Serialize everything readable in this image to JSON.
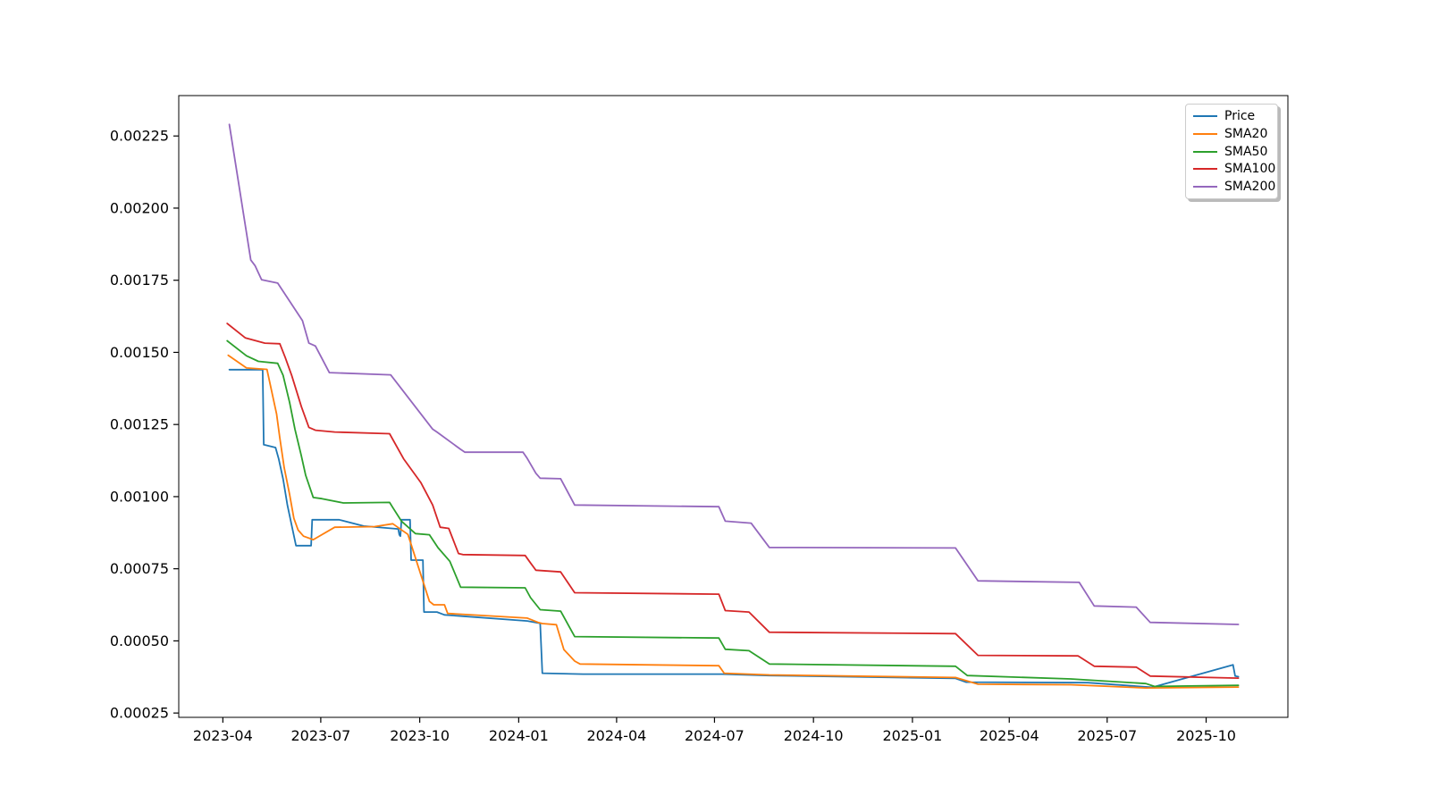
{
  "figure": {
    "background": "#ffffff"
  },
  "chart_data": {
    "type": "line",
    "title": "",
    "xlabel": "",
    "ylabel": "",
    "grid": false,
    "x_domain": [
      "2023-02-19",
      "2025-12-16"
    ],
    "y_domain": [
      0.000235,
      0.00239
    ],
    "x_ticks": [
      {
        "date": "2023-04-01",
        "label": "2023-04"
      },
      {
        "date": "2023-07-01",
        "label": "2023-07"
      },
      {
        "date": "2023-10-01",
        "label": "2023-10"
      },
      {
        "date": "2024-01-01",
        "label": "2024-01"
      },
      {
        "date": "2024-04-01",
        "label": "2024-04"
      },
      {
        "date": "2024-07-01",
        "label": "2024-07"
      },
      {
        "date": "2024-10-01",
        "label": "2024-10"
      },
      {
        "date": "2025-01-01",
        "label": "2025-01"
      },
      {
        "date": "2025-04-01",
        "label": "2025-04"
      },
      {
        "date": "2025-07-01",
        "label": "2025-07"
      },
      {
        "date": "2025-10-01",
        "label": "2025-10"
      }
    ],
    "y_ticks": [
      {
        "value": 0.00025,
        "label": "0.00025"
      },
      {
        "value": 0.0005,
        "label": "0.00050"
      },
      {
        "value": 0.00075,
        "label": "0.00075"
      },
      {
        "value": 0.001,
        "label": "0.00100"
      },
      {
        "value": 0.00125,
        "label": "0.00125"
      },
      {
        "value": 0.0015,
        "label": "0.00150"
      },
      {
        "value": 0.00175,
        "label": "0.00175"
      },
      {
        "value": 0.002,
        "label": "0.00200"
      },
      {
        "value": 0.00225,
        "label": "0.00225"
      }
    ],
    "legend": {
      "position": "upper right",
      "entries": [
        "Price",
        "SMA20",
        "SMA50",
        "SMA100",
        "SMA200"
      ]
    },
    "series": [
      {
        "name": "Price",
        "color": "#1f77b4",
        "points": [
          [
            "2023-04-07",
            0.00144
          ],
          [
            "2023-05-08",
            0.00144
          ],
          [
            "2023-05-09",
            0.00118
          ],
          [
            "2023-05-20",
            0.00117
          ],
          [
            "2023-05-23",
            0.00113
          ],
          [
            "2023-05-27",
            0.00106
          ],
          [
            "2023-05-31",
            0.00097
          ],
          [
            "2023-06-04",
            0.0009
          ],
          [
            "2023-06-08",
            0.00083
          ],
          [
            "2023-06-22",
            0.00083
          ],
          [
            "2023-06-23",
            0.00092
          ],
          [
            "2023-07-18",
            0.00092
          ],
          [
            "2023-08-10",
            0.000898
          ],
          [
            "2023-09-11",
            0.000888
          ],
          [
            "2023-09-12",
            0.000868
          ],
          [
            "2023-09-13",
            0.000863
          ],
          [
            "2023-09-14",
            0.00092
          ],
          [
            "2023-09-22",
            0.00092
          ],
          [
            "2023-09-23",
            0.00078
          ],
          [
            "2023-10-04",
            0.00078
          ],
          [
            "2023-10-05",
            0.0006
          ],
          [
            "2023-10-17",
            0.0006
          ],
          [
            "2023-10-24",
            0.00059
          ],
          [
            "2024-01-09",
            0.000569
          ],
          [
            "2024-01-21",
            0.000561
          ],
          [
            "2024-01-23",
            0.000388
          ],
          [
            "2024-03-01",
            0.000385
          ],
          [
            "2024-07-08",
            0.000385
          ],
          [
            "2024-08-21",
            0.00038
          ],
          [
            "2025-02-10",
            0.00037
          ],
          [
            "2025-02-20",
            0.000357
          ],
          [
            "2025-06-13",
            0.000355
          ],
          [
            "2025-08-12",
            0.000339
          ],
          [
            "2025-10-26",
            0.000417
          ],
          [
            "2025-10-28",
            0.000378
          ],
          [
            "2025-10-31",
            0.000376
          ]
        ]
      },
      {
        "name": "SMA20",
        "color": "#ff7f0e",
        "points": [
          [
            "2023-04-06",
            0.00149
          ],
          [
            "2023-04-23",
            0.001446
          ],
          [
            "2023-05-12",
            0.001441
          ],
          [
            "2023-05-21",
            0.001286
          ],
          [
            "2023-05-24",
            0.001203
          ],
          [
            "2023-05-28",
            0.0011
          ],
          [
            "2023-06-02",
            0.001008
          ],
          [
            "2023-06-06",
            0.000925
          ],
          [
            "2023-06-10",
            0.000884
          ],
          [
            "2023-06-15",
            0.000863
          ],
          [
            "2023-06-24",
            0.000851
          ],
          [
            "2023-07-14",
            0.000894
          ],
          [
            "2023-08-20",
            0.000896
          ],
          [
            "2023-09-06",
            0.000906
          ],
          [
            "2023-09-20",
            0.000869
          ],
          [
            "2023-10-02",
            0.00073
          ],
          [
            "2023-10-10",
            0.000637
          ],
          [
            "2023-10-14",
            0.000625
          ],
          [
            "2023-10-24",
            0.000625
          ],
          [
            "2023-10-27",
            0.000595
          ],
          [
            "2024-01-09",
            0.000579
          ],
          [
            "2024-01-19",
            0.000564
          ],
          [
            "2024-01-23",
            0.00056
          ],
          [
            "2024-02-05",
            0.000556
          ],
          [
            "2024-02-12",
            0.00047
          ],
          [
            "2024-02-22",
            0.00043
          ],
          [
            "2024-02-27",
            0.00042
          ],
          [
            "2024-07-05",
            0.000414
          ],
          [
            "2024-07-10",
            0.000388
          ],
          [
            "2024-08-21",
            0.000382
          ],
          [
            "2025-02-10",
            0.000373
          ],
          [
            "2025-03-03",
            0.00035
          ],
          [
            "2025-05-28",
            0.000348
          ],
          [
            "2025-08-06",
            0.000337
          ],
          [
            "2025-10-31",
            0.00034
          ]
        ]
      },
      {
        "name": "SMA50",
        "color": "#2ca02c",
        "points": [
          [
            "2023-04-05",
            0.00154
          ],
          [
            "2023-04-23",
            0.001488
          ],
          [
            "2023-05-04",
            0.001469
          ],
          [
            "2023-05-22",
            0.001462
          ],
          [
            "2023-05-27",
            0.00142
          ],
          [
            "2023-06-02",
            0.001327
          ],
          [
            "2023-06-07",
            0.001234
          ],
          [
            "2023-06-13",
            0.001141
          ],
          [
            "2023-06-17",
            0.001074
          ],
          [
            "2023-06-24",
            0.000997
          ],
          [
            "2023-07-02",
            0.000993
          ],
          [
            "2023-07-22",
            0.000978
          ],
          [
            "2023-09-03",
            0.00098
          ],
          [
            "2023-09-06",
            0.000962
          ],
          [
            "2023-09-14",
            0.000915
          ],
          [
            "2023-09-27",
            0.000872
          ],
          [
            "2023-10-10",
            0.000868
          ],
          [
            "2023-10-18",
            0.000823
          ],
          [
            "2023-10-29",
            0.000776
          ],
          [
            "2023-11-08",
            0.000686
          ],
          [
            "2024-01-07",
            0.000684
          ],
          [
            "2024-01-12",
            0.00065
          ],
          [
            "2024-01-21",
            0.000608
          ],
          [
            "2024-02-09",
            0.000603
          ],
          [
            "2024-02-22",
            0.000515
          ],
          [
            "2024-07-05",
            0.00051
          ],
          [
            "2024-07-11",
            0.000471
          ],
          [
            "2024-08-02",
            0.000466
          ],
          [
            "2024-08-21",
            0.00042
          ],
          [
            "2025-02-10",
            0.000412
          ],
          [
            "2025-02-21",
            0.00038
          ],
          [
            "2025-05-28",
            0.000368
          ],
          [
            "2025-08-06",
            0.000352
          ],
          [
            "2025-08-14",
            0.000342
          ],
          [
            "2025-10-31",
            0.000346
          ]
        ]
      },
      {
        "name": "SMA100",
        "color": "#d62728",
        "points": [
          [
            "2023-04-05",
            0.0016
          ],
          [
            "2023-04-22",
            0.00155
          ],
          [
            "2023-05-10",
            0.001532
          ],
          [
            "2023-05-24",
            0.00153
          ],
          [
            "2023-05-29",
            0.001482
          ],
          [
            "2023-06-04",
            0.00142
          ],
          [
            "2023-06-13",
            0.001312
          ],
          [
            "2023-06-20",
            0.00124
          ],
          [
            "2023-06-26",
            0.00123
          ],
          [
            "2023-07-14",
            0.001224
          ],
          [
            "2023-09-03",
            0.001218
          ],
          [
            "2023-09-16",
            0.001131
          ],
          [
            "2023-10-02",
            0.001049
          ],
          [
            "2023-10-13",
            0.000971
          ],
          [
            "2023-10-20",
            0.000894
          ],
          [
            "2023-10-28",
            0.00089
          ],
          [
            "2023-11-06",
            0.000803
          ],
          [
            "2023-11-10",
            0.000799
          ],
          [
            "2024-01-07",
            0.000796
          ],
          [
            "2024-01-12",
            0.00077
          ],
          [
            "2024-01-17",
            0.000745
          ],
          [
            "2024-02-09",
            0.000739
          ],
          [
            "2024-02-22",
            0.000667
          ],
          [
            "2024-07-05",
            0.000662
          ],
          [
            "2024-07-11",
            0.000605
          ],
          [
            "2024-08-02",
            0.0006
          ],
          [
            "2024-08-21",
            0.00053
          ],
          [
            "2025-02-10",
            0.000525
          ],
          [
            "2025-03-03",
            0.00045
          ],
          [
            "2025-06-04",
            0.000448
          ],
          [
            "2025-06-19",
            0.000412
          ],
          [
            "2025-07-28",
            0.000409
          ],
          [
            "2025-08-10",
            0.000378
          ],
          [
            "2025-10-31",
            0.000371
          ]
        ]
      },
      {
        "name": "SMA200",
        "color": "#9467bd",
        "points": [
          [
            "2023-04-07",
            0.00229
          ],
          [
            "2023-04-27",
            0.00182
          ],
          [
            "2023-05-01",
            0.0018
          ],
          [
            "2023-05-07",
            0.001752
          ],
          [
            "2023-05-22",
            0.00174
          ],
          [
            "2023-06-14",
            0.00161
          ],
          [
            "2023-06-20",
            0.001532
          ],
          [
            "2023-06-26",
            0.001522
          ],
          [
            "2023-07-09",
            0.00143
          ],
          [
            "2023-09-04",
            0.001422
          ],
          [
            "2023-10-13",
            0.001234
          ],
          [
            "2023-10-17",
            0.001224
          ],
          [
            "2023-11-08",
            0.001164
          ],
          [
            "2023-11-12",
            0.001154
          ],
          [
            "2024-01-05",
            0.001154
          ],
          [
            "2024-01-09",
            0.001132
          ],
          [
            "2024-01-17",
            0.001081
          ],
          [
            "2024-01-21",
            0.001064
          ],
          [
            "2024-02-09",
            0.001062
          ],
          [
            "2024-02-22",
            0.000971
          ],
          [
            "2024-07-05",
            0.000965
          ],
          [
            "2024-07-11",
            0.000915
          ],
          [
            "2024-08-04",
            0.000908
          ],
          [
            "2024-08-21",
            0.000824
          ],
          [
            "2025-02-10",
            0.000822
          ],
          [
            "2025-03-03",
            0.000708
          ],
          [
            "2025-06-05",
            0.000703
          ],
          [
            "2025-06-19",
            0.000621
          ],
          [
            "2025-07-28",
            0.000617
          ],
          [
            "2025-08-10",
            0.000564
          ],
          [
            "2025-10-31",
            0.000557
          ]
        ]
      }
    ]
  }
}
